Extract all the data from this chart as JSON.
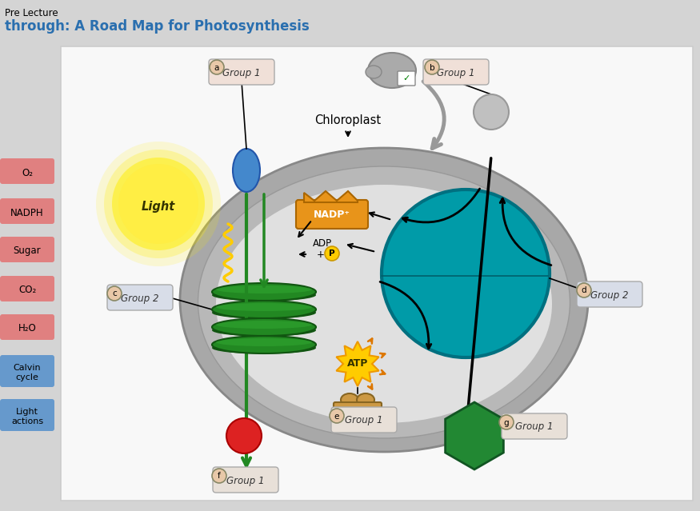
{
  "title_pre": "Pre Lecture",
  "title_main": "through: A Road Map for Photosynthesis",
  "title_color": "#2a6faf",
  "bg_color": "#d4d4d4",
  "panel_bg": "#f5f5f5",
  "left_labels_pink": [
    "O₂",
    "NADPH",
    "Sugar",
    "CO₂",
    "H₂O"
  ],
  "left_labels_blue": [
    "Calvin\ncycle",
    "Light\nactions"
  ],
  "pink_color": "#e08080",
  "blue_color": "#6699cc",
  "group_box_pink": "#e8c8c8",
  "group_box_blue": "#c0cce0",
  "sun_color": "#ffee44",
  "chloro_outer": "#a0a0a0",
  "chloro_inner": "#c8c8c8",
  "chloro_light": "#e8e8e8",
  "thylakoid_color": "#228822",
  "calvin_color": "#009ba8",
  "nadp_color": "#e8941a",
  "atp_color": "#ffcc00",
  "mito_color": "#cc9944",
  "red_circle": "#dd2222",
  "hex_color": "#228833",
  "blue_mol": "#4488cc",
  "arrow_green": "#228822",
  "arrow_orange": "#dd7700"
}
